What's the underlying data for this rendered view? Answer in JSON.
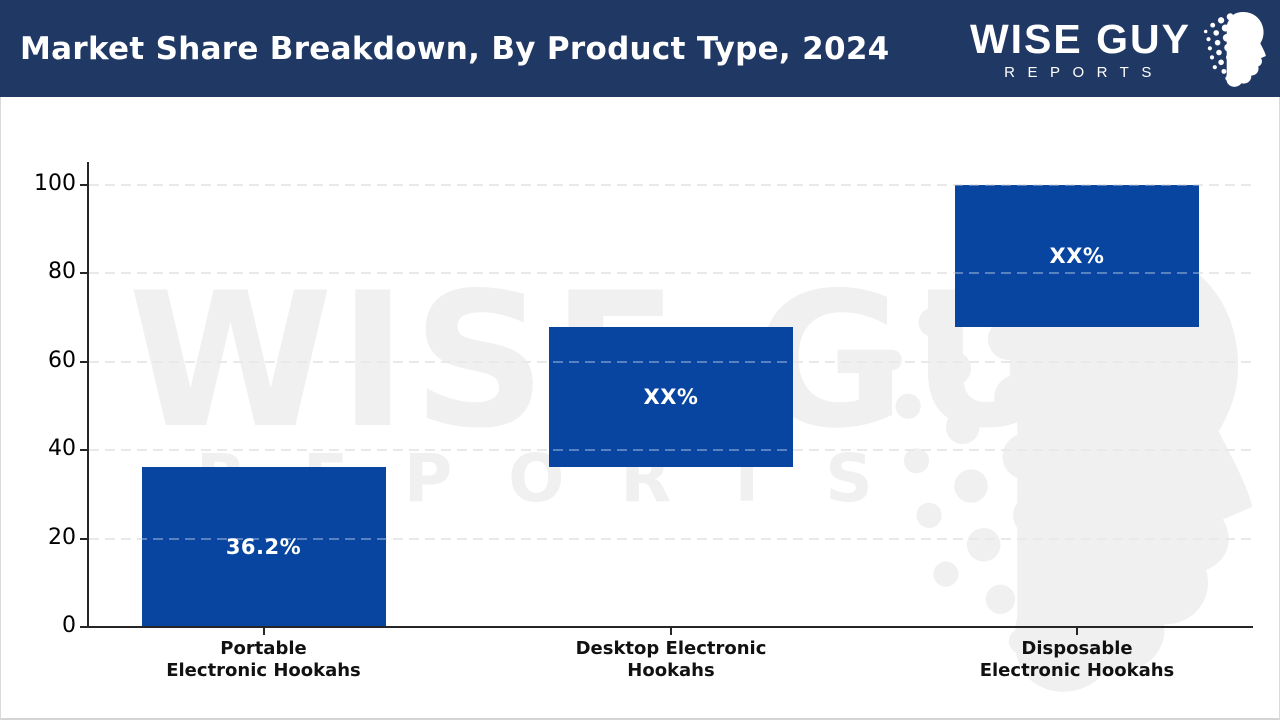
{
  "header": {
    "title": "Market Share Breakdown, By Product Type, 2024",
    "logo": {
      "line1": "WISE GUY",
      "line2": "REPORTS"
    }
  },
  "watermark": {
    "line1": "WISE GUY",
    "line2": "REPORTS"
  },
  "colors": {
    "header_bg": "#203864",
    "bar_fill": "#0745a0",
    "axis": "#262626",
    "grid": "#dedede",
    "watermark": "#f0f0f0",
    "title_text": "#ffffff",
    "bar_label_text": "#ffffff"
  },
  "chart_data": {
    "type": "bar",
    "variant": "waterfall",
    "title": "Market Share Breakdown, By Product Type, 2024",
    "xlabel": "",
    "ylabel": "",
    "ylim": [
      0,
      100
    ],
    "yticks": [
      0,
      20,
      40,
      60,
      80,
      100
    ],
    "grid": "horizontal-dashed",
    "legend": null,
    "categories": [
      "Portable Electronic Hookahs",
      "Desktop Electronic Hookahs",
      "Disposable Electronic Hookahs"
    ],
    "bars": [
      {
        "category_lines": [
          "Portable",
          "Electronic Hookahs"
        ],
        "start": 0,
        "end": 36.2,
        "label": "36.2%"
      },
      {
        "category_lines": [
          "Desktop Electronic",
          "Hookahs"
        ],
        "start": 36.2,
        "end": 67.8,
        "label": "XX%"
      },
      {
        "category_lines": [
          "Disposable",
          "Electronic Hookahs"
        ],
        "start": 67.8,
        "end": 100,
        "label": "XX%"
      }
    ]
  }
}
